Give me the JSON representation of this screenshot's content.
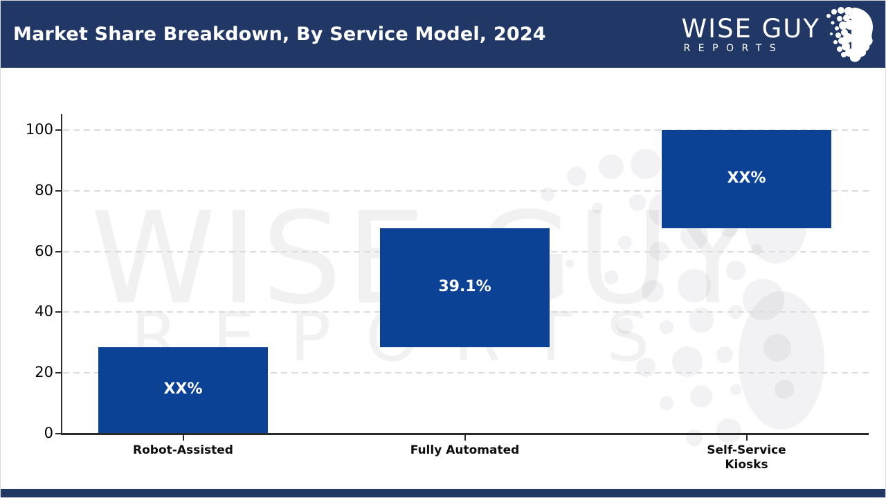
{
  "header": {
    "title": "Market Share Breakdown, By Service Model, 2024",
    "logo": {
      "line1": "WISE GUY",
      "line2": "REPORTS"
    },
    "bg_color": "#213866"
  },
  "footer": {
    "bg_color": "#213866"
  },
  "watermark": {
    "line1": "WISE GUY",
    "line2": "REPORTS"
  },
  "chart_data": {
    "type": "bar",
    "subtype": "floating-segment-waterfall",
    "title": "Market Share Breakdown, By Service Model, 2024",
    "categories": [
      "Robot-Assisted",
      "Fully Automated",
      "Self-Service\nKiosks"
    ],
    "bars": [
      {
        "category": "Robot-Assisted",
        "start": 0,
        "end": 28.5,
        "label": "XX%"
      },
      {
        "category": "Fully Automated",
        "start": 28.5,
        "end": 67.6,
        "label": "39.1%"
      },
      {
        "category": "Self-Service Kiosks",
        "start": 67.6,
        "end": 100,
        "label": "XX%"
      }
    ],
    "bar_color": "#0b4295",
    "value_label_color": "#ffffff",
    "yticks": [
      0,
      20,
      40,
      60,
      80,
      100
    ],
    "ylim": [
      0,
      105
    ],
    "xlabel": "",
    "ylabel": "",
    "grid": "horizontal dashed",
    "legend": "none"
  }
}
